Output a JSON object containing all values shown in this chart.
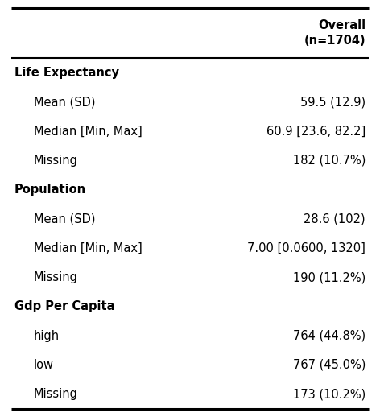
{
  "header_col2": "Overall\n(n=1704)",
  "rows": [
    {
      "label": "Life Expectancy",
      "value": "",
      "bold": true,
      "indent": false
    },
    {
      "label": "Mean (SD)",
      "value": "59.5 (12.9)",
      "bold": false,
      "indent": true
    },
    {
      "label": "Median [Min, Max]",
      "value": "60.9 [23.6, 82.2]",
      "bold": false,
      "indent": true
    },
    {
      "label": "Missing",
      "value": "182 (10.7%)",
      "bold": false,
      "indent": true
    },
    {
      "label": "Population",
      "value": "",
      "bold": true,
      "indent": false
    },
    {
      "label": "Mean (SD)",
      "value": "28.6 (102)",
      "bold": false,
      "indent": true
    },
    {
      "label": "Median [Min, Max]",
      "value": "7.00 [0.0600, 1320]",
      "bold": false,
      "indent": true
    },
    {
      "label": "Missing",
      "value": "190 (11.2%)",
      "bold": false,
      "indent": true
    },
    {
      "label": "Gdp Per Capita",
      "value": "",
      "bold": true,
      "indent": false
    },
    {
      "label": "high",
      "value": "764 (44.8%)",
      "bold": false,
      "indent": true
    },
    {
      "label": "low",
      "value": "767 (45.0%)",
      "bold": false,
      "indent": true
    },
    {
      "label": "Missing",
      "value": "173 (10.2%)",
      "bold": false,
      "indent": true
    }
  ],
  "bg_color": "#ffffff",
  "text_color": "#000000",
  "line_color": "#000000",
  "font_size": 10.5,
  "header_font_size": 10.5,
  "fig_width": 4.72,
  "fig_height": 5.18,
  "dpi": 100
}
